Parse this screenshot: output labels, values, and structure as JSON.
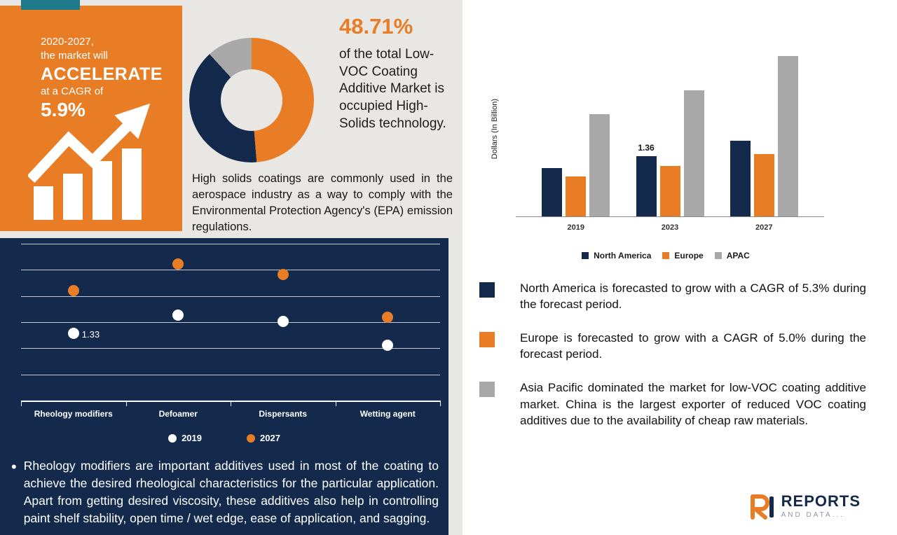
{
  "palette": {
    "orange": "#E87D26",
    "navy": "#132A4C",
    "teal": "#1D7A8A",
    "gray": "#A8A8A8",
    "panel_bg": "#E9E7E4",
    "white": "#FFFFFF"
  },
  "promo": {
    "line1": "2020-2027,",
    "line2": "the market will",
    "line3": "ACCELERATE",
    "line4": "at a CAGR of",
    "line5": "5.9%"
  },
  "highlight": {
    "stat": "48.71%",
    "stat_desc": "of the total Low-VOC Coating Additive Market is occupied High-Solids technology.",
    "body": "High solids coatings are commonly used in the aerospace industry as a way to comply with the Environmental Protection Agency's (EPA) emission regulations."
  },
  "note_bullet": "•",
  "dotplot_note": "Rheology modifiers are important additives used in most of the coating to achieve the desired rheological characteristics for the particular application. Apart from getting desired viscosity, these additives also help in controlling paint shelf stability, open time / wet edge, ease of application, and sagging.",
  "right_bullets": [
    {
      "color": "#132A4C",
      "text": "North America is forecasted to grow with a CAGR of 5.3% during the forecast period."
    },
    {
      "color": "#E87D26",
      "text": "Europe is forecasted to grow with a CAGR of 5.0% during the forecast period."
    },
    {
      "color": "#A8A8A8",
      "text": "Asia Pacific dominated the market for low-VOC coating additive market. China is the largest exporter of reduced VOC coating additives due to the availability of cheap raw materials."
    }
  ],
  "logo": {
    "title": "REPORTS",
    "subtitle": "AND DATA..."
  },
  "chart_data": [
    {
      "type": "pie",
      "variant": "donut",
      "title": "48.71% of the total Low-VOC Coating Additive Market is occupied High-Solids technology.",
      "slices": [
        {
          "label": "High-Solids technology",
          "value": 48.71,
          "color": "#E87D26"
        },
        {
          "label": "",
          "value": 39.5,
          "color": "#132A4C"
        },
        {
          "label": "",
          "value": 11.79,
          "color": "#A8A8A8"
        }
      ]
    },
    {
      "type": "scatter",
      "categories": [
        "Rheology modifiers",
        "Defoamer",
        "Dispersants",
        "Wetting agent"
      ],
      "series": [
        {
          "name": "2019",
          "color": "#FFFFFF",
          "values": [
            1.33,
            1.42,
            1.39,
            1.27
          ]
        },
        {
          "name": "2027",
          "color": "#E87D26",
          "values": [
            1.54,
            1.67,
            1.62,
            1.41
          ]
        }
      ],
      "ylim": [
        1.0,
        1.77
      ],
      "gridlines": 7,
      "grid": "on",
      "legend_position": "bottom",
      "value_labels": [
        {
          "series": "2019",
          "category": "Rheology modifiers",
          "text": "1.33"
        }
      ]
    },
    {
      "type": "bar",
      "categories": [
        "2019",
        "2023",
        "2027"
      ],
      "series": [
        {
          "name": "North America",
          "color": "#132A4C",
          "values": [
            1.09,
            1.36,
            1.72
          ]
        },
        {
          "name": "Europe",
          "color": "#E87D26",
          "values": [
            0.91,
            1.14,
            1.42
          ]
        },
        {
          "name": "APAC",
          "color": "#A8A8A8",
          "values": [
            2.31,
            2.86,
            3.64
          ]
        }
      ],
      "xlabel": "",
      "ylabel": "Dollars (In Billion)",
      "ylim": [
        0,
        4
      ],
      "grid": "off",
      "legend_position": "bottom",
      "value_labels": [
        {
          "series": "North America",
          "category": "2023",
          "text": "1.36"
        }
      ]
    }
  ]
}
